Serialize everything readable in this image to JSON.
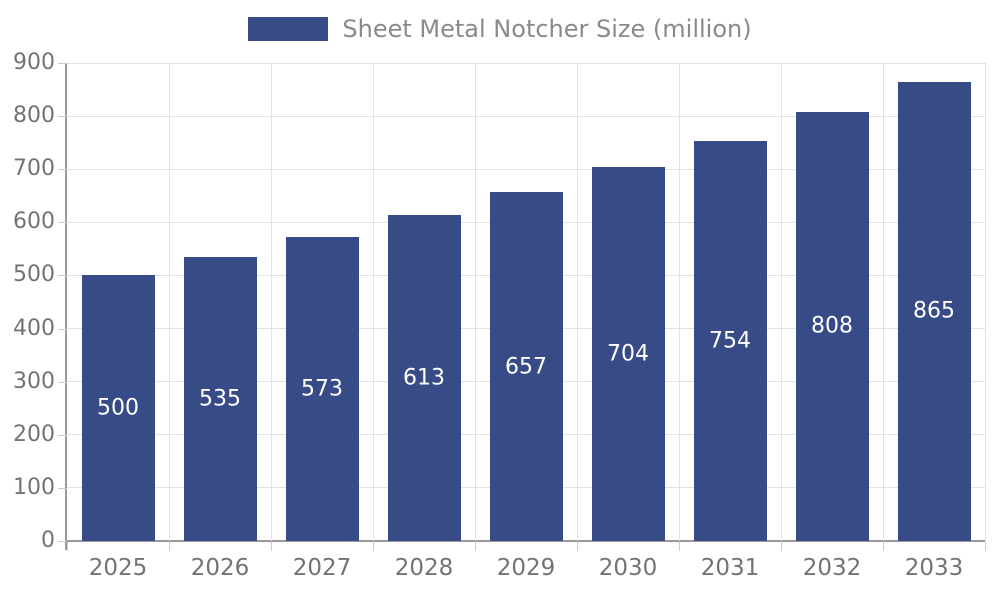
{
  "chart_data": {
    "type": "bar",
    "title": "",
    "legend": "Sheet Metal Notcher Size (million)",
    "legend_position": "top-center",
    "categories": [
      "2025",
      "2026",
      "2027",
      "2028",
      "2029",
      "2030",
      "2031",
      "2032",
      "2033"
    ],
    "series": [
      {
        "name": "Sheet Metal Notcher Size (million)",
        "values": [
          500,
          535,
          573,
          613,
          657,
          704,
          754,
          808,
          865
        ]
      }
    ],
    "xlabel": "",
    "ylabel": "",
    "ylim": [
      0,
      900
    ],
    "yticks": [
      0,
      100,
      200,
      300,
      400,
      500,
      600,
      700,
      800,
      900
    ],
    "grid": true,
    "bar_label_position": "inside-center"
  },
  "colors": {
    "bar": "#374b87",
    "bar_value_label": "#ffffff",
    "legend_text": "#8a8a8a",
    "axis_label": "#737373",
    "axis_line": "#999999",
    "gridline": "#e2e2e2",
    "tick": "#cccccc",
    "background": "#ffffff"
  }
}
